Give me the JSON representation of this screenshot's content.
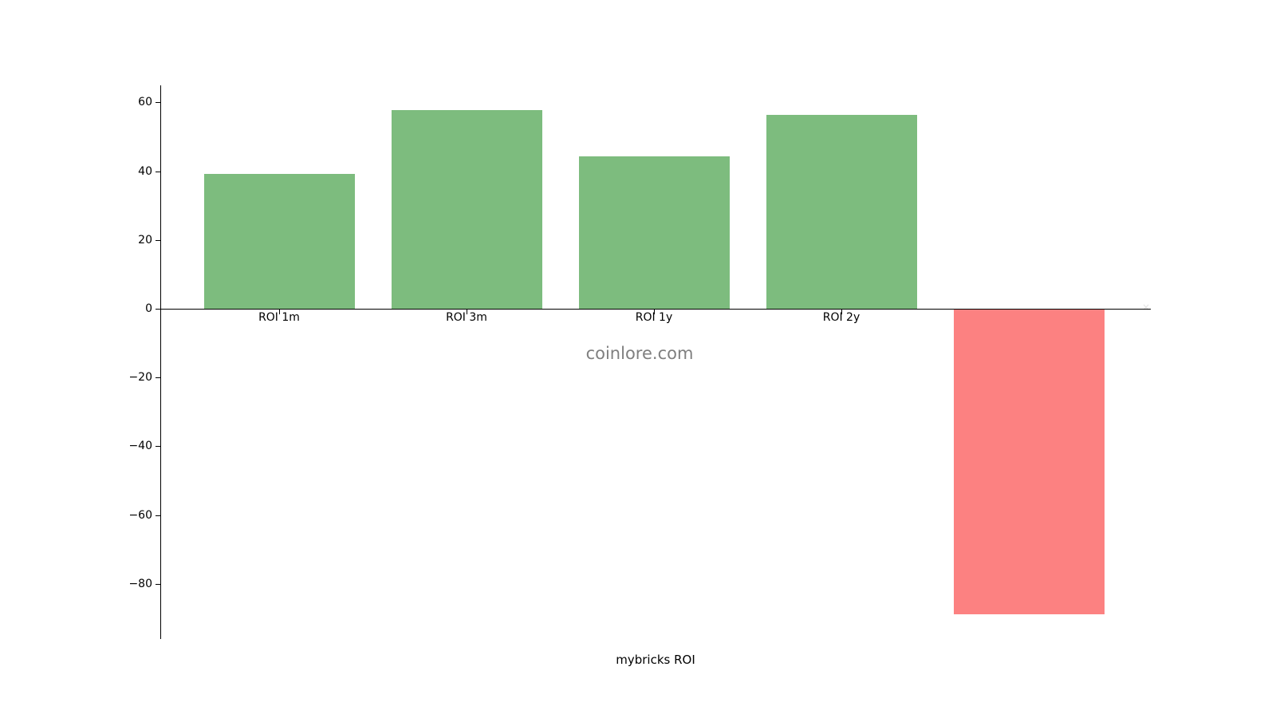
{
  "watermark_text": "coinlore.com",
  "chart_data": {
    "type": "bar",
    "title": "",
    "xlabel": "mybricks ROI",
    "ylabel": "",
    "categories": [
      "ROI 1m",
      "ROI 3m",
      "ROI 1y",
      "ROI 2y",
      ""
    ],
    "values": [
      39.2,
      57.7,
      44.3,
      56.4,
      -88.9
    ],
    "yticks": [
      60,
      40,
      20,
      0,
      -20,
      -40,
      -60,
      -80
    ],
    "ylim": [
      -96,
      65
    ],
    "grid": false,
    "legend": null,
    "colors": {
      "positive_bar": "#7dbc7e",
      "negative_bar": "#fc8181",
      "axis": "#000000",
      "tick_label": "#000000",
      "watermark": "#7f7f7f"
    }
  }
}
